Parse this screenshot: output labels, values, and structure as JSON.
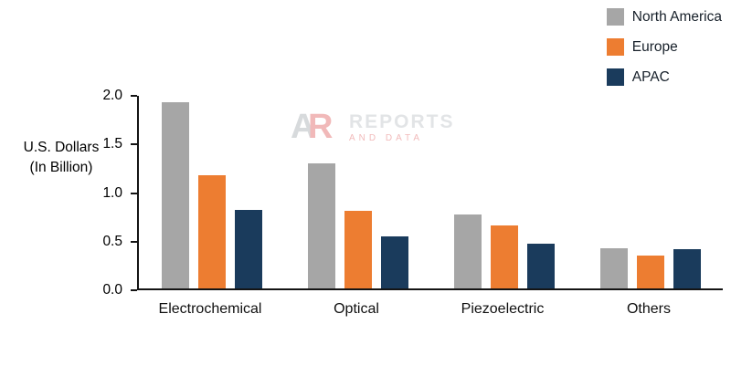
{
  "chart_data": {
    "type": "bar",
    "title": "",
    "categories": [
      "Electrochemical",
      "Optical",
      "Piezoelectric",
      "Others"
    ],
    "series": [
      {
        "name": "North America",
        "color": "#a6a6a6",
        "values": [
          1.93,
          1.3,
          0.77,
          0.42
        ]
      },
      {
        "name": "Europe",
        "color": "#ed7d31",
        "values": [
          1.18,
          0.81,
          0.65,
          0.34
        ]
      },
      {
        "name": "APAC",
        "color": "#1a3b5c",
        "values": [
          0.82,
          0.54,
          0.46,
          0.41
        ]
      }
    ],
    "ylabel_lines": [
      "U.S. Dollars",
      "(In Billion)"
    ],
    "yticks": [
      "0.0",
      "0.5",
      "1.0",
      "1.5",
      "2.0"
    ],
    "ylim": [
      0,
      2.0
    ],
    "xlabel": "",
    "legend_position": "top-right",
    "grid": false
  },
  "watermark": {
    "logo_back": "A",
    "logo_front": "R",
    "line1": "REPORTS",
    "line2": "AND DATA"
  }
}
